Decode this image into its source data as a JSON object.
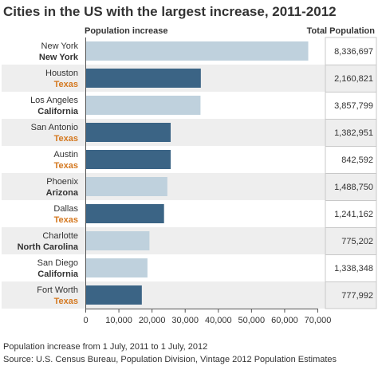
{
  "chart_data": {
    "type": "bar",
    "title": "Cities in the US with the largest increase, 2011-2012",
    "xlabel": "Population increase",
    "ylabel": "",
    "total_label": "Total Population",
    "xlim": [
      0,
      70000
    ],
    "ticks": [
      "0",
      "10,000",
      "20,000",
      "30,000",
      "40,000",
      "50,000",
      "60,000",
      "70,000"
    ],
    "tick_values": [
      0,
      10000,
      20000,
      30000,
      40000,
      50000,
      60000,
      70000
    ],
    "grid": false,
    "categories": [
      {
        "city": "New York",
        "state": "New York"
      },
      {
        "city": "Houston",
        "state": "Texas"
      },
      {
        "city": "Los Angeles",
        "state": "California"
      },
      {
        "city": "San Antonio",
        "state": "Texas"
      },
      {
        "city": "Austin",
        "state": "Texas"
      },
      {
        "city": "Phoenix",
        "state": "Arizona"
      },
      {
        "city": "Dallas",
        "state": "Texas"
      },
      {
        "city": "Charlotte",
        "state": "North Carolina"
      },
      {
        "city": "San Diego",
        "state": "California"
      },
      {
        "city": "Fort Worth",
        "state": "Texas"
      }
    ],
    "values": [
      67000,
      34600,
      34500,
      25500,
      25500,
      24500,
      23500,
      19100,
      18500,
      16800
    ],
    "totals": [
      "8,336,697",
      "2,160,821",
      "3,857,799",
      "1,382,951",
      "842,592",
      "1,488,750",
      "1,241,162",
      "775,202",
      "1,338,348",
      "777,992"
    ],
    "highlight_state": "Texas",
    "colors": {
      "bar_default": "#bfd1dd",
      "bar_highlight": "#3b6485",
      "state_default": "#333333",
      "state_highlight": "#d4781f",
      "row_stripe": "#eeeeee",
      "axis": "#555555"
    }
  },
  "footer": {
    "note": "Population increase from 1 July, 2011 to 1 July, 2012",
    "source": "Source: U.S. Census Bureau, Population Division, Vintage 2012 Population Estimates"
  }
}
